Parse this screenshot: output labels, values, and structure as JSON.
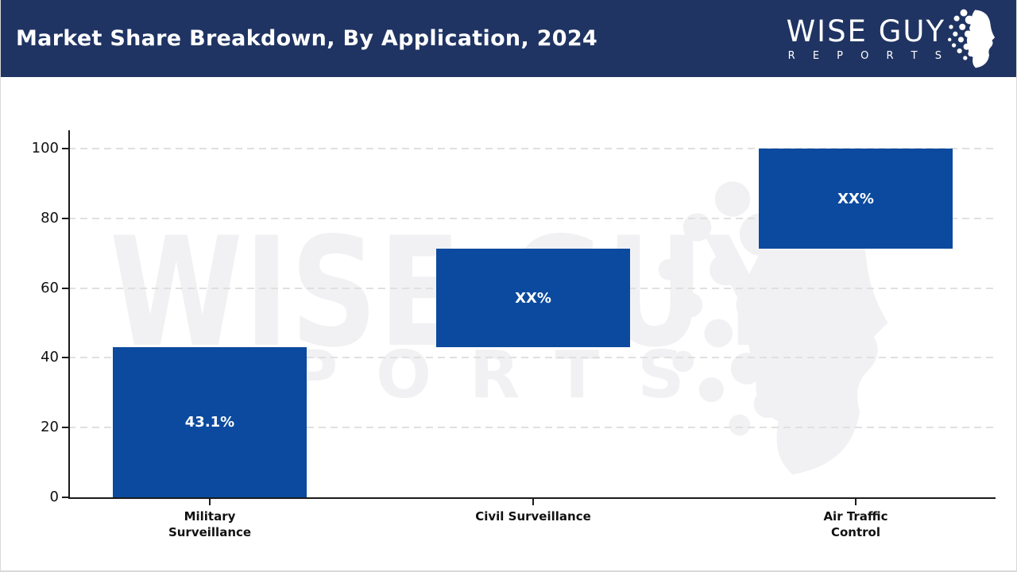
{
  "header": {
    "title": "Market Share Breakdown, By Application, 2024",
    "logo": {
      "line1": "WISE GUY",
      "line2": "R E P O R T S"
    }
  },
  "watermark": {
    "line1": "WISE GUY",
    "line2": "REPORTS"
  },
  "chart_data": {
    "type": "bar",
    "subtype": "waterfall-stacked-percent",
    "title": "Market Share Breakdown, By Application, 2024",
    "categories": [
      "Military Surveillance",
      "Civil Surveillance",
      "Air Traffic Control"
    ],
    "category_label_lines": [
      [
        "Military",
        "Surveillance"
      ],
      [
        "Civil Surveillance"
      ],
      [
        "Air Traffic",
        "Control"
      ]
    ],
    "bars": [
      {
        "category": "Military Surveillance",
        "start": 0,
        "end": 43.1,
        "label": "43.1%"
      },
      {
        "category": "Civil Surveillance",
        "start": 43.1,
        "end": 71.2,
        "label": "XX%"
      },
      {
        "category": "Air Traffic Control",
        "start": 71.2,
        "end": 100,
        "label": "XX%"
      }
    ],
    "ylim": [
      0,
      100
    ],
    "yticks": [
      0,
      20,
      40,
      60,
      80,
      100
    ],
    "grid": "horizontal-dashed",
    "legend": "none"
  },
  "colors": {
    "header_bg": "#1f3462",
    "bar_fill": "#0b4a9e",
    "bar_label": "#ffffff",
    "grid_line": "#e0e0e0",
    "axis_line": "#1a1a1a",
    "watermark": "#f1f1f3",
    "page_border": "#d9d9d9"
  }
}
